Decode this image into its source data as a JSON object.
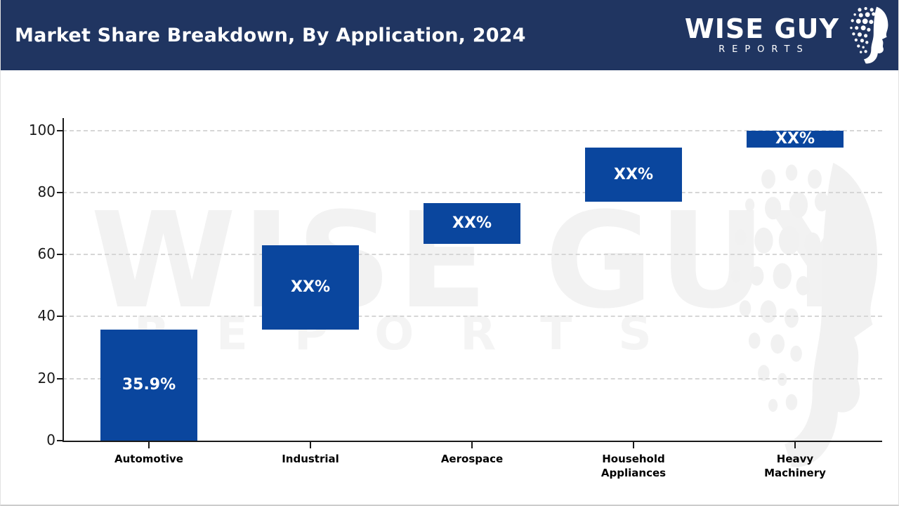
{
  "header": {
    "title": "Market Share Breakdown, By Application, 2024",
    "bg_color": "#203561",
    "logo": {
      "wordmark": "WISE GUY",
      "subtitle": "REPORTS"
    }
  },
  "watermark": {
    "wordmark": "WISE GUY",
    "subtitle": "REPORTS"
  },
  "chart_data": {
    "type": "bar",
    "subtype": "waterfall",
    "title": "Market Share Breakdown, By Application, 2024",
    "categories": [
      "Automotive",
      "Industrial",
      "Aerospace",
      "Household Appliances",
      "Heavy Machinery"
    ],
    "segments": [
      {
        "category": "Automotive",
        "start": 0,
        "end": 35.9,
        "label": "35.9%"
      },
      {
        "category": "Industrial",
        "start": 35.9,
        "end": 63.0,
        "label": "XX%"
      },
      {
        "category": "Aerospace",
        "start": 63.5,
        "end": 76.5,
        "label": "XX%"
      },
      {
        "category": "Household Appliances",
        "start": 77.0,
        "end": 94.4,
        "label": "XX%"
      },
      {
        "category": "Heavy Machinery",
        "start": 94.5,
        "end": 100.0,
        "label": "XX%"
      }
    ],
    "yticks": [
      0,
      20,
      40,
      60,
      80,
      100
    ],
    "ylim": [
      0,
      104
    ],
    "bar_color": "#0a469e",
    "bar_label_color": "#ffffff",
    "axis_color": "#1a1a1a",
    "grid": "horizontal-dashed",
    "legend": "none"
  }
}
